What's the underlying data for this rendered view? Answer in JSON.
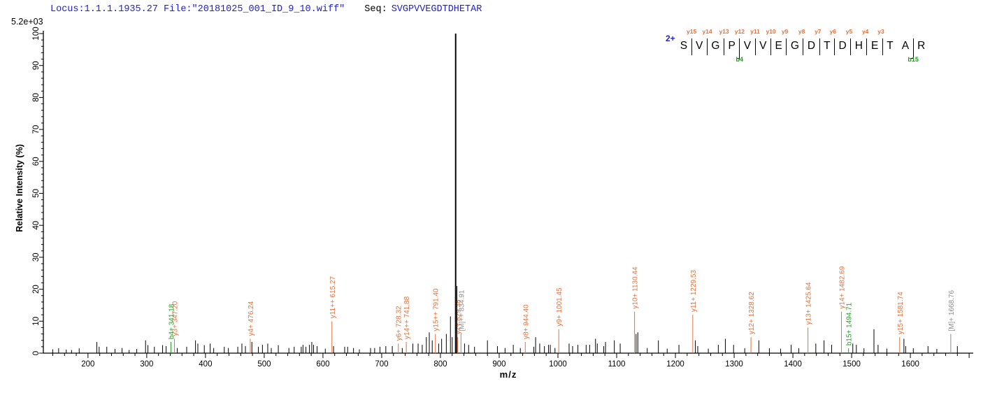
{
  "header": {
    "locus_file": "Locus:1.1.1.1935.27 File:\"20181025_001_ID_9_10.wiff\"",
    "seq_label": "Seq:",
    "seq_value": "SVGPVVEGDTDHETAR"
  },
  "scale_label": "5.2e+03",
  "colors": {
    "y_ion": "#e2713b",
    "b_ion": "#1f9e1f",
    "precursor": "#8c8c8c",
    "peak": "#000000",
    "axis": "#000000",
    "header_blue": "#2222cc"
  },
  "sequence_map": {
    "charge_label": "2+",
    "residues": [
      "S",
      "V",
      "G",
      "P",
      "V",
      "V",
      "E",
      "G",
      "D",
      "T",
      "D",
      "H",
      "E",
      "T",
      "A",
      "R"
    ],
    "gaps": [
      {
        "after_residue": 1,
        "y_label": "y15",
        "divider": true
      },
      {
        "after_residue": 2,
        "y_label": "y14",
        "divider": true
      },
      {
        "after_residue": 3,
        "y_label": "y13",
        "divider": true
      },
      {
        "after_residue": 4,
        "y_label": "y12",
        "b_label": "b4",
        "divider": true
      },
      {
        "after_residue": 5,
        "y_label": "y11",
        "divider": true
      },
      {
        "after_residue": 6,
        "y_label": "y10",
        "divider": true
      },
      {
        "after_residue": 7,
        "y_label": "y9",
        "divider": true
      },
      {
        "after_residue": 8,
        "y_label": "y8",
        "divider": true
      },
      {
        "after_residue": 9,
        "y_label": "y7",
        "divider": true
      },
      {
        "after_residue": 10,
        "y_label": "y6",
        "divider": true
      },
      {
        "after_residue": 11,
        "y_label": "y5",
        "divider": true
      },
      {
        "after_residue": 12,
        "y_label": "y4",
        "divider": true
      },
      {
        "after_residue": 13,
        "y_label": "y3",
        "divider": true
      },
      {
        "after_residue": 14,
        "divider": false
      },
      {
        "after_residue": 15,
        "b_label": "b15",
        "divider": true
      }
    ]
  },
  "chart_data": {
    "type": "bar",
    "subtype": "ms2-spectrum",
    "xlabel": "m/z",
    "ylabel": "Relative  Intensity (%)",
    "intensity_scale_label": "5.2e+03",
    "xlim": [
      124,
      1707
    ],
    "ylim": [
      0,
      100
    ],
    "x_major_step": 100,
    "x_major_label_start": 200,
    "x_major_label_end": 1600,
    "x_minor_step": 20,
    "y_major_step": 10,
    "y_minor_step": 2,
    "grid": false,
    "base_peak": {
      "mz": 825.9,
      "intensity": 100
    },
    "assigned_peaks": [
      {
        "mz": 341.18,
        "intensity": 3.5,
        "type": "b",
        "label": "b4+ 341.18"
      },
      {
        "mz": 347.2,
        "intensity": 4.5,
        "type": "y",
        "label": "y3+ 347.20"
      },
      {
        "mz": 476.24,
        "intensity": 4.5,
        "type": "y",
        "label": "y4+ 476.24"
      },
      {
        "mz": 615.27,
        "intensity": 10,
        "type": "y",
        "label": "y11++ 615.27"
      },
      {
        "mz": 728.32,
        "intensity": 3,
        "type": "y",
        "label": "y6+ 728.32"
      },
      {
        "mz": 741.88,
        "intensity": 3.5,
        "type": "y",
        "label": "y14++ 741.88"
      },
      {
        "mz": 791.4,
        "intensity": 6,
        "type": "y",
        "label": "y15++ 791.40"
      },
      {
        "mz": 829.38,
        "intensity": 5,
        "type": "y",
        "label": "y7+ 829.38",
        "occluded": true
      },
      {
        "mz": 834.91,
        "intensity": 6,
        "type": "precursor",
        "label": "[M]++ 834.91"
      },
      {
        "mz": 944.4,
        "intensity": 3.5,
        "type": "y",
        "label": "y8+ 944.40"
      },
      {
        "mz": 1001.45,
        "intensity": 7.5,
        "type": "y",
        "label": "y9+ 1001.45"
      },
      {
        "mz": 1130.44,
        "intensity": 13,
        "type": "y",
        "label": "y10+ 1130.44"
      },
      {
        "mz": 1229.53,
        "intensity": 12,
        "type": "y",
        "label": "y11+ 1229.53"
      },
      {
        "mz": 1328.62,
        "intensity": 5,
        "type": "y",
        "label": "y12+ 1328.62"
      },
      {
        "mz": 1425.64,
        "intensity": 8,
        "type": "y",
        "label": "y13+ 1425.64"
      },
      {
        "mz": 1482.69,
        "intensity": 13,
        "type": "y",
        "label": "y14+ 1482.69"
      },
      {
        "mz": 1494.71,
        "intensity": 1.5,
        "type": "b",
        "label": "b15+ 1494.71"
      },
      {
        "mz": 1581.74,
        "intensity": 5,
        "type": "y",
        "label": "y15+ 1581.74"
      },
      {
        "mz": 1668.76,
        "intensity": 6,
        "type": "precursor",
        "label": "[M]+ 1668.76"
      }
    ],
    "unassigned_peaks": [
      [
        140,
        1.2
      ],
      [
        150,
        1.5
      ],
      [
        163,
        1.1
      ],
      [
        172,
        1.0
      ],
      [
        185,
        1.5
      ],
      [
        215,
        3.5
      ],
      [
        219,
        2.0
      ],
      [
        232,
        2.0
      ],
      [
        246,
        1.3
      ],
      [
        258,
        1.6
      ],
      [
        270,
        1.0
      ],
      [
        283,
        1.3
      ],
      [
        298,
        4.0
      ],
      [
        302,
        2.5
      ],
      [
        313,
        2.0
      ],
      [
        327,
        2.5
      ],
      [
        333,
        2.2
      ],
      [
        352,
        1.6
      ],
      [
        368,
        2.0
      ],
      [
        383,
        4.0
      ],
      [
        387,
        3.0
      ],
      [
        398,
        2.5
      ],
      [
        408,
        3.0
      ],
      [
        414,
        1.6
      ],
      [
        432,
        2.0
      ],
      [
        439,
        1.6
      ],
      [
        455,
        2.0
      ],
      [
        462,
        3.0
      ],
      [
        468,
        2.2
      ],
      [
        479,
        3.5
      ],
      [
        490,
        2.0
      ],
      [
        497,
        2.6
      ],
      [
        506,
        3.0
      ],
      [
        512,
        1.6
      ],
      [
        524,
        2.5
      ],
      [
        542,
        1.6
      ],
      [
        551,
        2.0
      ],
      [
        563,
        2.0
      ],
      [
        566,
        2.6
      ],
      [
        571,
        2.0
      ],
      [
        577,
        2.6
      ],
      [
        581,
        3.5
      ],
      [
        584,
        2.6
      ],
      [
        590,
        2.2
      ],
      [
        604,
        1.4
      ],
      [
        618,
        2.2
      ],
      [
        637,
        2.0
      ],
      [
        642,
        2.0
      ],
      [
        652,
        1.6
      ],
      [
        662,
        1.2
      ],
      [
        681,
        1.6
      ],
      [
        688,
        1.6
      ],
      [
        697,
        2.0
      ],
      [
        707,
        2.2
      ],
      [
        718,
        2.2
      ],
      [
        735,
        1.6
      ],
      [
        753,
        3.0
      ],
      [
        762,
        3.0
      ],
      [
        769,
        2.6
      ],
      [
        776,
        5.0
      ],
      [
        781,
        6.5
      ],
      [
        786,
        4.0
      ],
      [
        797,
        3.0
      ],
      [
        802,
        4.5
      ],
      [
        810,
        6.0
      ],
      [
        817,
        11.5
      ],
      [
        820,
        5.0
      ],
      [
        828,
        21.0
      ],
      [
        841,
        3.0
      ],
      [
        848,
        2.6
      ],
      [
        858,
        2.0
      ],
      [
        880,
        4.0
      ],
      [
        897,
        2.2
      ],
      [
        910,
        1.6
      ],
      [
        924,
        2.6
      ],
      [
        936,
        1.6
      ],
      [
        959,
        2.0
      ],
      [
        962,
        5.0
      ],
      [
        969,
        3.0
      ],
      [
        977,
        2.2
      ],
      [
        984,
        2.6
      ],
      [
        987,
        2.6
      ],
      [
        995,
        1.6
      ],
      [
        1019,
        3.0
      ],
      [
        1025,
        2.2
      ],
      [
        1034,
        2.6
      ],
      [
        1048,
        2.6
      ],
      [
        1054,
        2.6
      ],
      [
        1064,
        4.5
      ],
      [
        1067,
        3.0
      ],
      [
        1078,
        2.2
      ],
      [
        1081,
        3.5
      ],
      [
        1096,
        4.0
      ],
      [
        1106,
        3.0
      ],
      [
        1133,
        6.0
      ],
      [
        1136,
        6.5
      ],
      [
        1152,
        1.6
      ],
      [
        1171,
        4.0
      ],
      [
        1186,
        1.4
      ],
      [
        1206,
        2.6
      ],
      [
        1234,
        4.0
      ],
      [
        1238,
        2.2
      ],
      [
        1256,
        1.4
      ],
      [
        1273,
        2.6
      ],
      [
        1285,
        4.5
      ],
      [
        1299,
        2.6
      ],
      [
        1318,
        1.5
      ],
      [
        1342,
        4.0
      ],
      [
        1360,
        1.5
      ],
      [
        1379,
        1.4
      ],
      [
        1397,
        2.6
      ],
      [
        1410,
        1.5
      ],
      [
        1439,
        3.0
      ],
      [
        1453,
        4.0
      ],
      [
        1466,
        2.6
      ],
      [
        1502,
        3.0
      ],
      [
        1508,
        2.6
      ],
      [
        1521,
        1.5
      ],
      [
        1538,
        7.5
      ],
      [
        1545,
        2.6
      ],
      [
        1560,
        1.4
      ],
      [
        1589,
        4.5
      ],
      [
        1592,
        2.2
      ],
      [
        1605,
        1.5
      ],
      [
        1630,
        2.2
      ],
      [
        1645,
        1.3
      ],
      [
        1680,
        2.2
      ]
    ]
  }
}
